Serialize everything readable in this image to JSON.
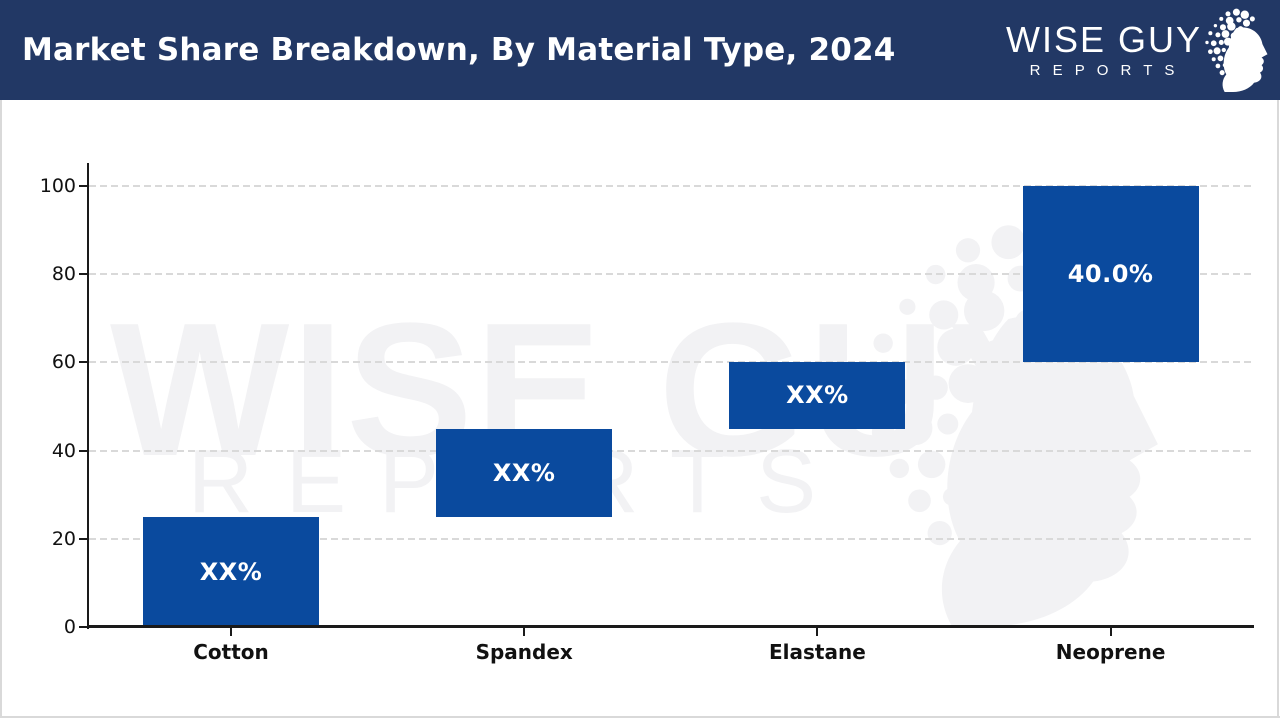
{
  "header": {
    "title": "Market Share Breakdown, By Material Type, 2024",
    "logo": {
      "wordmark": "WISE GUY",
      "subtext": "R E P O R T S"
    }
  },
  "watermark": {
    "wordmark": "WISE GUY",
    "subtext": "R E P O R T S"
  },
  "colors": {
    "header_bg": "#223865",
    "bar_fill": "#0a4a9e",
    "bar_label_text": "#ffffff",
    "grid_line": "#d9d9d9",
    "axis_line": "#1a1a1a",
    "tick_label_text": "#111111",
    "watermark_gray": "#f2f2f4",
    "canvas_bg": "#ffffff"
  },
  "chart_data": {
    "type": "bar",
    "subtype": "waterfall",
    "title": "Market Share Breakdown, By Material Type, 2024",
    "categories": [
      "Cotton",
      "Spandex",
      "Elastane",
      "Neoprene"
    ],
    "segments": [
      {
        "category": "Cotton",
        "start": 0,
        "end": 25,
        "value_label": "XX%"
      },
      {
        "category": "Spandex",
        "start": 25,
        "end": 45,
        "value_label": "XX%"
      },
      {
        "category": "Elastane",
        "start": 45,
        "end": 60,
        "value_label": "XX%"
      },
      {
        "category": "Neoprene",
        "start": 60,
        "end": 100,
        "value_label": "40.0%"
      }
    ],
    "xlabel": "",
    "ylabel": "",
    "ylim": [
      0,
      100
    ],
    "yticks": [
      0,
      20,
      40,
      60,
      80,
      100
    ],
    "grid": "horizontal dashed",
    "legend_position": "none"
  }
}
